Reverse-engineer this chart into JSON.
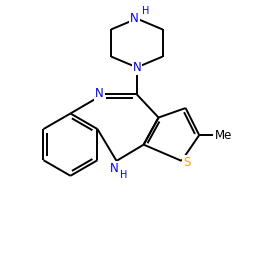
{
  "bg_color": "#ffffff",
  "line_color": "#000000",
  "atom_colors": {
    "N": "#0000ff",
    "S": "#ffa500"
  },
  "font_size": 8.5,
  "line_width": 1.4,
  "figsize": [
    2.71,
    2.73
  ],
  "dpi": 100,
  "xlim": [
    0,
    10
  ],
  "ylim": [
    0,
    10
  ]
}
